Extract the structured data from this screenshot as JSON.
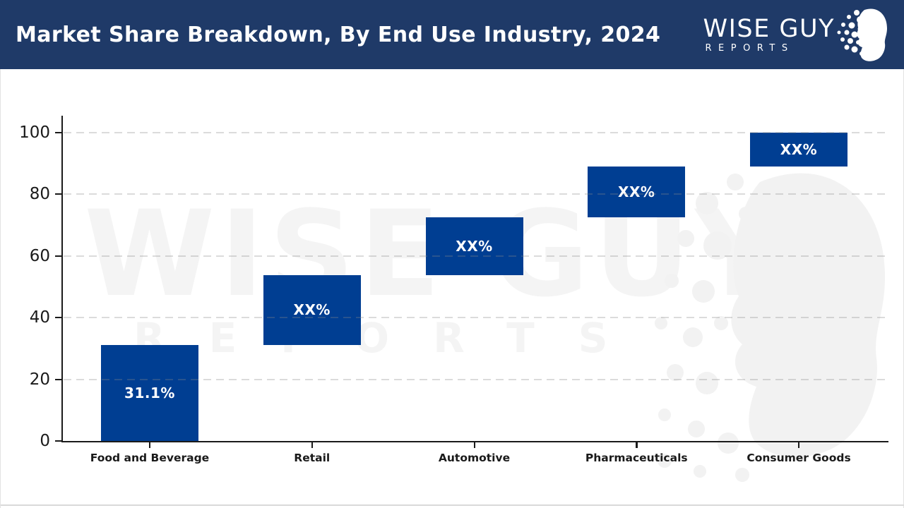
{
  "header": {
    "title": "Market Share Breakdown, By End Use Industry, 2024",
    "logo": {
      "line1": "WISE GUY",
      "line2": "REPORTS"
    }
  },
  "watermark": {
    "line1": "WISE GUY",
    "line2": "REPORTS"
  },
  "chart_data": {
    "type": "bar",
    "subtype": "waterfall",
    "title": "Market Share Breakdown, By End Use Industry, 2024",
    "categories": [
      "Food and Beverage",
      "Retail",
      "Automotive",
      "Pharmaceuticals",
      "Consumer Goods"
    ],
    "series": [
      {
        "name": "Market share (%)",
        "segments": [
          {
            "category": "Food and Beverage",
            "start": 0,
            "end": 31.1,
            "label": "31.1%"
          },
          {
            "category": "Retail",
            "start": 31.1,
            "end": 53.8,
            "label": "XX%"
          },
          {
            "category": "Automotive",
            "start": 53.8,
            "end": 72.4,
            "label": "XX%"
          },
          {
            "category": "Pharmaceuticals",
            "start": 72.4,
            "end": 89.0,
            "label": "XX%"
          },
          {
            "category": "Consumer Goods",
            "start": 89.0,
            "end": 100.0,
            "label": "XX%"
          }
        ]
      }
    ],
    "xlabel": "",
    "ylabel": "",
    "ylim": [
      0,
      100
    ],
    "yticks": [
      0,
      20,
      40,
      60,
      80,
      100
    ],
    "grid": "horizontal-dashed",
    "legend": "none",
    "colors": {
      "bar": "#003e92",
      "bar_label": "#ffffff",
      "axis": "#1a1a1a",
      "gridline": "rgba(135,135,135,0.3)",
      "header_bg": "#1f3a68",
      "watermark": "#f4f4f4"
    }
  }
}
